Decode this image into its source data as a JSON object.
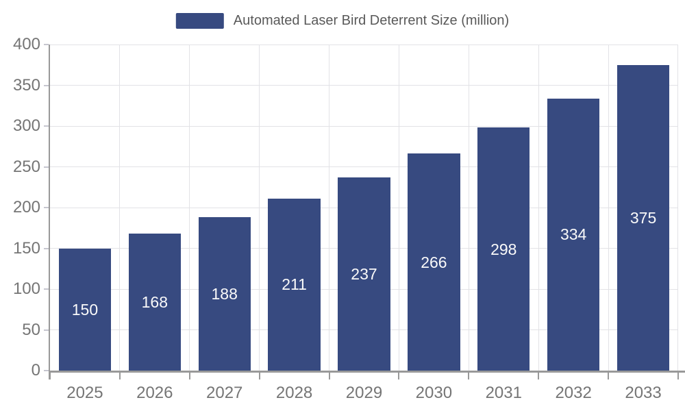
{
  "chart_data": {
    "type": "bar",
    "title": "Automated Laser Bird Deterrent Size (million)",
    "legend_label": "Automated Laser Bird Deterrent Size (million)",
    "legend_position": "top-center",
    "categories": [
      "2025",
      "2026",
      "2027",
      "2028",
      "2029",
      "2030",
      "2031",
      "2032",
      "2033"
    ],
    "series": [
      {
        "name": "Automated Laser Bird Deterrent Size (million)",
        "values": [
          150,
          168,
          188,
          211,
          237,
          266,
          298,
          334,
          375
        ]
      }
    ],
    "bar_value_labels": [
      "150",
      "168",
      "188",
      "211",
      "237",
      "266",
      "298",
      "334",
      "375"
    ],
    "xlabel": "",
    "ylabel": "",
    "ylim": [
      0,
      400
    ],
    "yticks": [
      0,
      50,
      100,
      150,
      200,
      250,
      300,
      350,
      400
    ],
    "grid": true,
    "colors": {
      "bar": "#374A80",
      "bar_value_label": "#FAFAFA",
      "grid": "#E2E2E6",
      "axis_line": "#999999",
      "tick_mark_y": "#C6C6CF",
      "tick_mark_x": "#999999",
      "tick_label": "#757575",
      "legend_text": "#595959",
      "background": "#FFFFFF"
    }
  }
}
